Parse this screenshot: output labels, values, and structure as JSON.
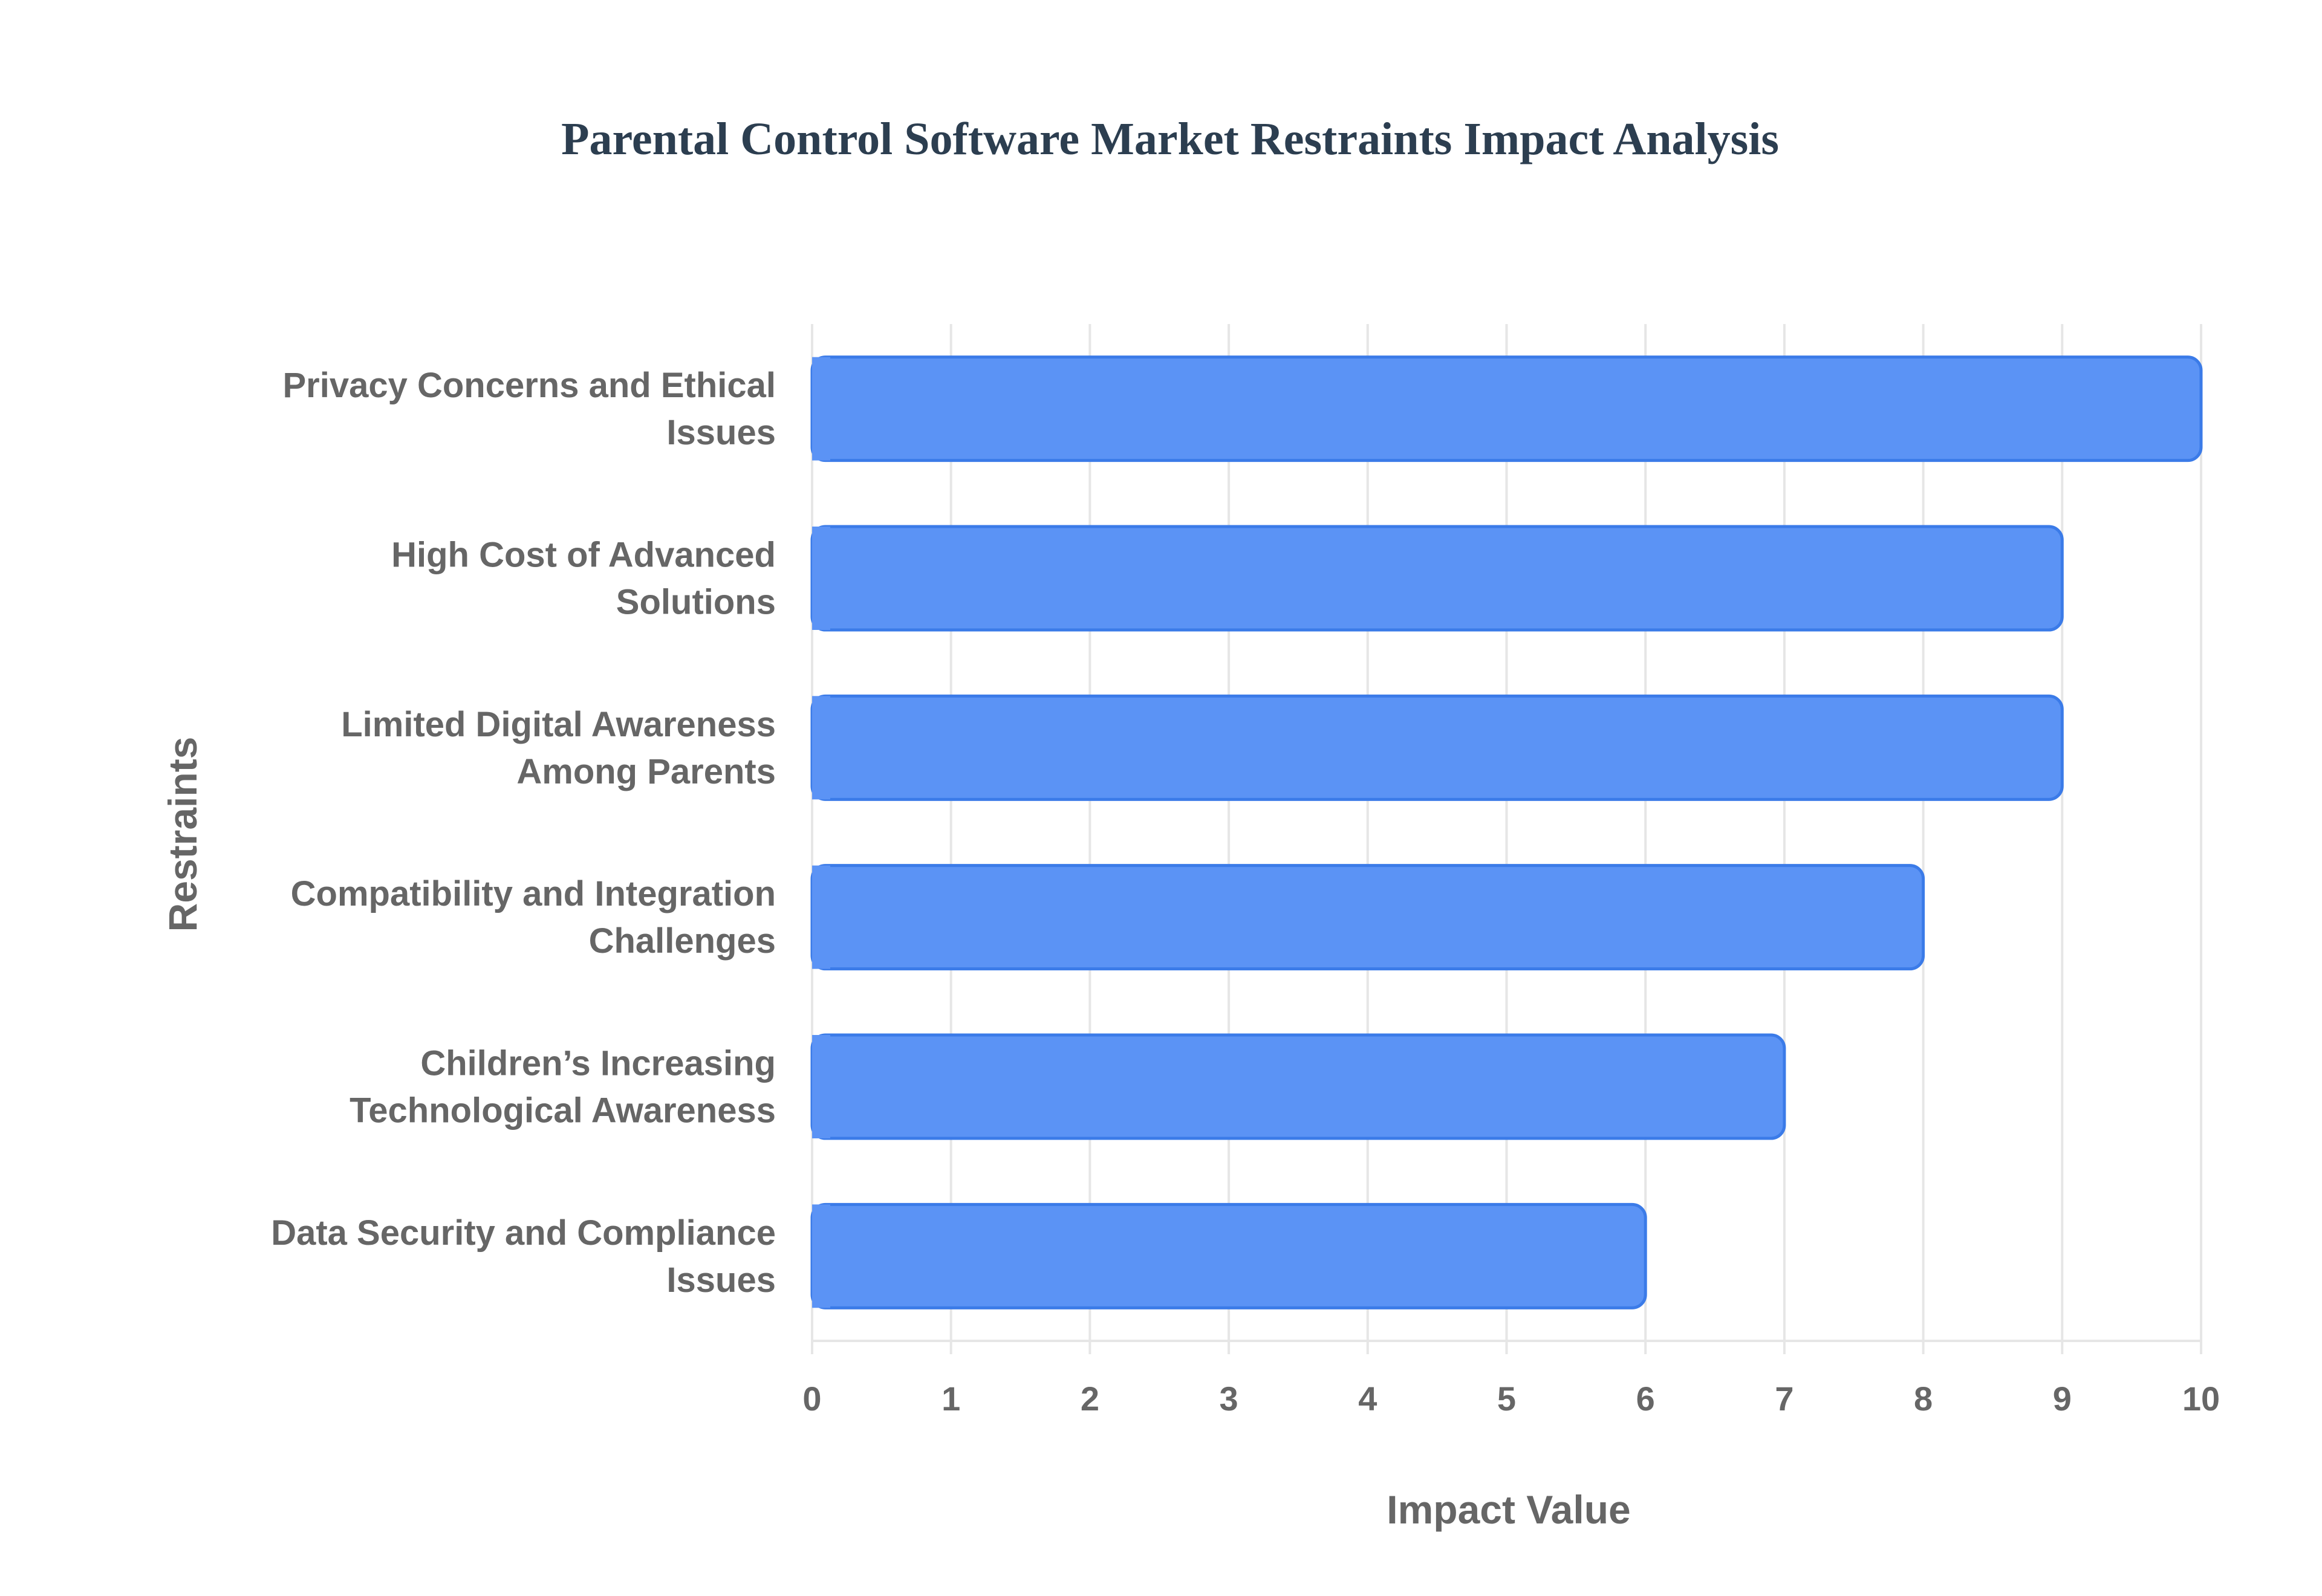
{
  "chart_data": {
    "type": "bar",
    "orientation": "horizontal",
    "title": "Parental Control Software Market Restraints Impact Analysis",
    "xlabel": "Impact Value",
    "ylabel": "Restraints",
    "categories": [
      "Privacy Concerns and Ethical Issues",
      "High Cost of Advanced Solutions",
      "Limited Digital Awareness Among Parents",
      "Compatibility and Integration Challenges",
      "Children’s Increasing Technological Awareness",
      "Data Security and Compliance Issues"
    ],
    "category_lines": [
      [
        "Privacy Concerns and Ethical",
        "Issues"
      ],
      [
        "High Cost of Advanced",
        "Solutions"
      ],
      [
        "Limited Digital Awareness",
        "Among Parents"
      ],
      [
        "Compatibility and Integration",
        "Challenges"
      ],
      [
        "Children’s Increasing",
        "Technological Awareness"
      ],
      [
        "Data Security and Compliance",
        "Issues"
      ]
    ],
    "values": [
      10,
      9,
      9,
      8,
      7,
      6
    ],
    "xlim": [
      0,
      10
    ],
    "xticks": [
      "0",
      "1",
      "2",
      "3",
      "4",
      "5",
      "6",
      "7",
      "8",
      "9",
      "10"
    ],
    "grid": true,
    "legend": "none",
    "colors": {
      "bar_fill": "#5b93f5",
      "bar_stroke": "#3b7be8",
      "title": "#2c3e50",
      "text": "#666666",
      "grid": "#e6e6e6"
    }
  }
}
